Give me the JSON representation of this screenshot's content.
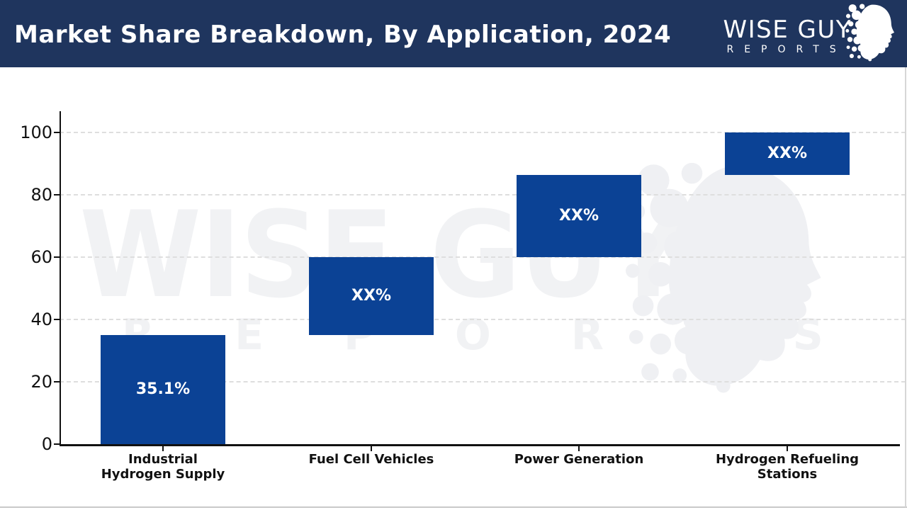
{
  "header": {
    "title": "Market Share Breakdown, By Application, 2024",
    "logo": {
      "line1": "WISE GUY",
      "line2": "REPORTS"
    }
  },
  "watermark": {
    "line1": "WISE GUY",
    "line2": "R E P O R T S"
  },
  "chart_data": {
    "type": "bar",
    "subtype": "waterfall",
    "title": "Market Share Breakdown, By Application, 2024",
    "categories": [
      "Industrial\nHydrogen Supply",
      "Fuel Cell Vehicles",
      "Power Generation",
      "Hydrogen Refueling\nStations"
    ],
    "segments": [
      {
        "category": "Industrial Hydrogen Supply",
        "start": 0,
        "end": 35.1,
        "label": "35.1%"
      },
      {
        "category": "Fuel Cell Vehicles",
        "start": 35.1,
        "end": 60.1,
        "label": "XX%"
      },
      {
        "category": "Power Generation",
        "start": 60.1,
        "end": 86.4,
        "label": "XX%"
      },
      {
        "category": "Hydrogen Refueling Stations",
        "start": 86.4,
        "end": 100,
        "label": "XX%"
      }
    ],
    "yticks": [
      0,
      20,
      40,
      60,
      80,
      100
    ],
    "ylim": [
      0,
      107
    ],
    "xlabel": "",
    "ylabel": "",
    "grid": "horizontal-dashed",
    "legend": "none",
    "bar_color": "#0b4295",
    "bar_label_color": "#ffffff",
    "header_bg_color": "#1f355e",
    "grid_color": "#dedede",
    "axis_color": "#111111",
    "watermark_color": "#f1f2f4"
  }
}
